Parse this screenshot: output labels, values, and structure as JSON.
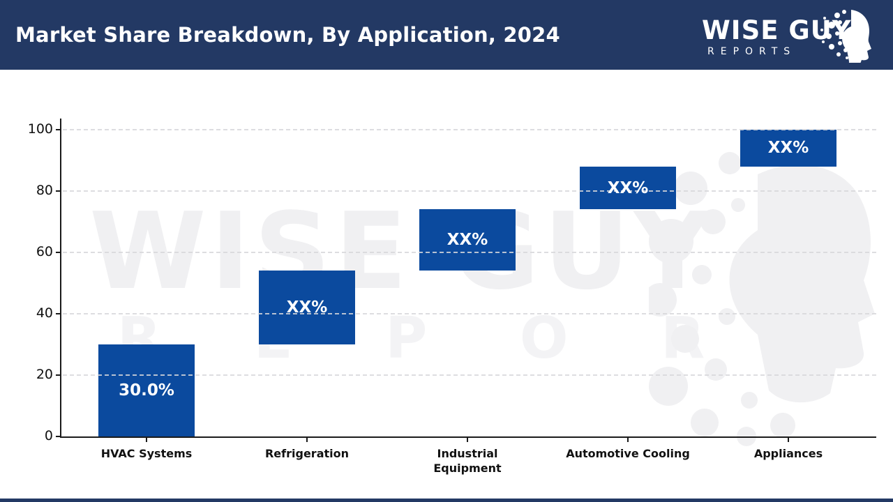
{
  "header": {
    "title": "Market Share Breakdown, By Application, 2024",
    "logo_line1": "WISE GUY",
    "logo_line2": "R E P O R T S"
  },
  "watermark": {
    "line1": "WISE GUY",
    "line2": "R E P O R T S"
  },
  "colors": {
    "header_bg": "#233964",
    "footer_bg": "#233964",
    "bar": "#0b4a9e",
    "bar_label": "#ffffff",
    "axis": "#1a1a1a",
    "grid": "rgba(215,215,218,0.85)",
    "watermark": "#f0f0f2"
  },
  "chart_data": {
    "type": "bar",
    "subtype": "waterfall",
    "title": "Market Share Breakdown, By Application, 2024",
    "xlabel": "",
    "ylabel": "",
    "ylim": [
      0,
      100
    ],
    "yticks": [
      0,
      20,
      40,
      60,
      80,
      100
    ],
    "grid": "horizontal-dashed",
    "legend": "none",
    "categories": [
      "HVAC Systems",
      "Refrigeration",
      "Industrial Equipment",
      "Automotive Cooling",
      "Appliances"
    ],
    "tick_labels": [
      "HVAC Systems",
      "Refrigeration",
      "Industrial\nEquipment",
      "Automotive Cooling",
      "Appliances"
    ],
    "segments": [
      {
        "category": "HVAC Systems",
        "start": 0,
        "end": 30,
        "value": 30,
        "display_label": "30.0%"
      },
      {
        "category": "Refrigeration",
        "start": 30,
        "end": 54,
        "value": 24,
        "display_label": "XX%"
      },
      {
        "category": "Industrial Equipment",
        "start": 54,
        "end": 74,
        "value": 20,
        "display_label": "XX%"
      },
      {
        "category": "Automotive Cooling",
        "start": 74,
        "end": 88,
        "value": 14,
        "display_label": "XX%"
      },
      {
        "category": "Appliances",
        "start": 88,
        "end": 100,
        "value": 12,
        "display_label": "XX%"
      }
    ]
  }
}
